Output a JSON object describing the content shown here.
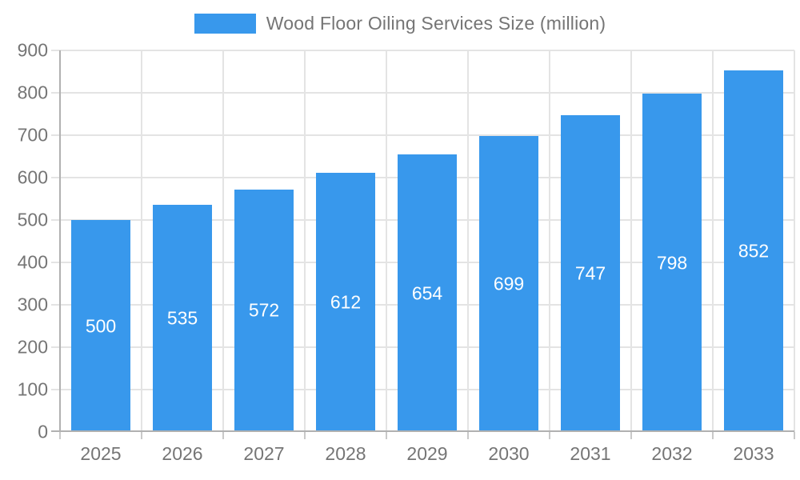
{
  "chart_data": {
    "type": "bar",
    "title": "Wood Floor Oiling Services Size (million)",
    "categories": [
      "2025",
      "2026",
      "2027",
      "2028",
      "2029",
      "2030",
      "2031",
      "2032",
      "2033"
    ],
    "values": [
      500,
      535,
      572,
      612,
      654,
      699,
      747,
      798,
      852
    ],
    "xlabel": "",
    "ylabel": "",
    "ylim": [
      0,
      900
    ],
    "yticks": [
      0,
      100,
      200,
      300,
      400,
      500,
      600,
      700,
      800,
      900
    ],
    "grid": true,
    "legend_position": "top",
    "bar_value_labels": "inside-center"
  },
  "legend": {
    "label": "Wood Floor Oiling Services Size (million)"
  },
  "colors": {
    "bar": "#3898EC",
    "bar_label_text": "#ffffff",
    "axis_line": "#b1b1b1",
    "gridline": "#e4e4e4",
    "tick_mark": "#c9c9c9",
    "tick_text": "#757575",
    "background": "#ffffff"
  }
}
